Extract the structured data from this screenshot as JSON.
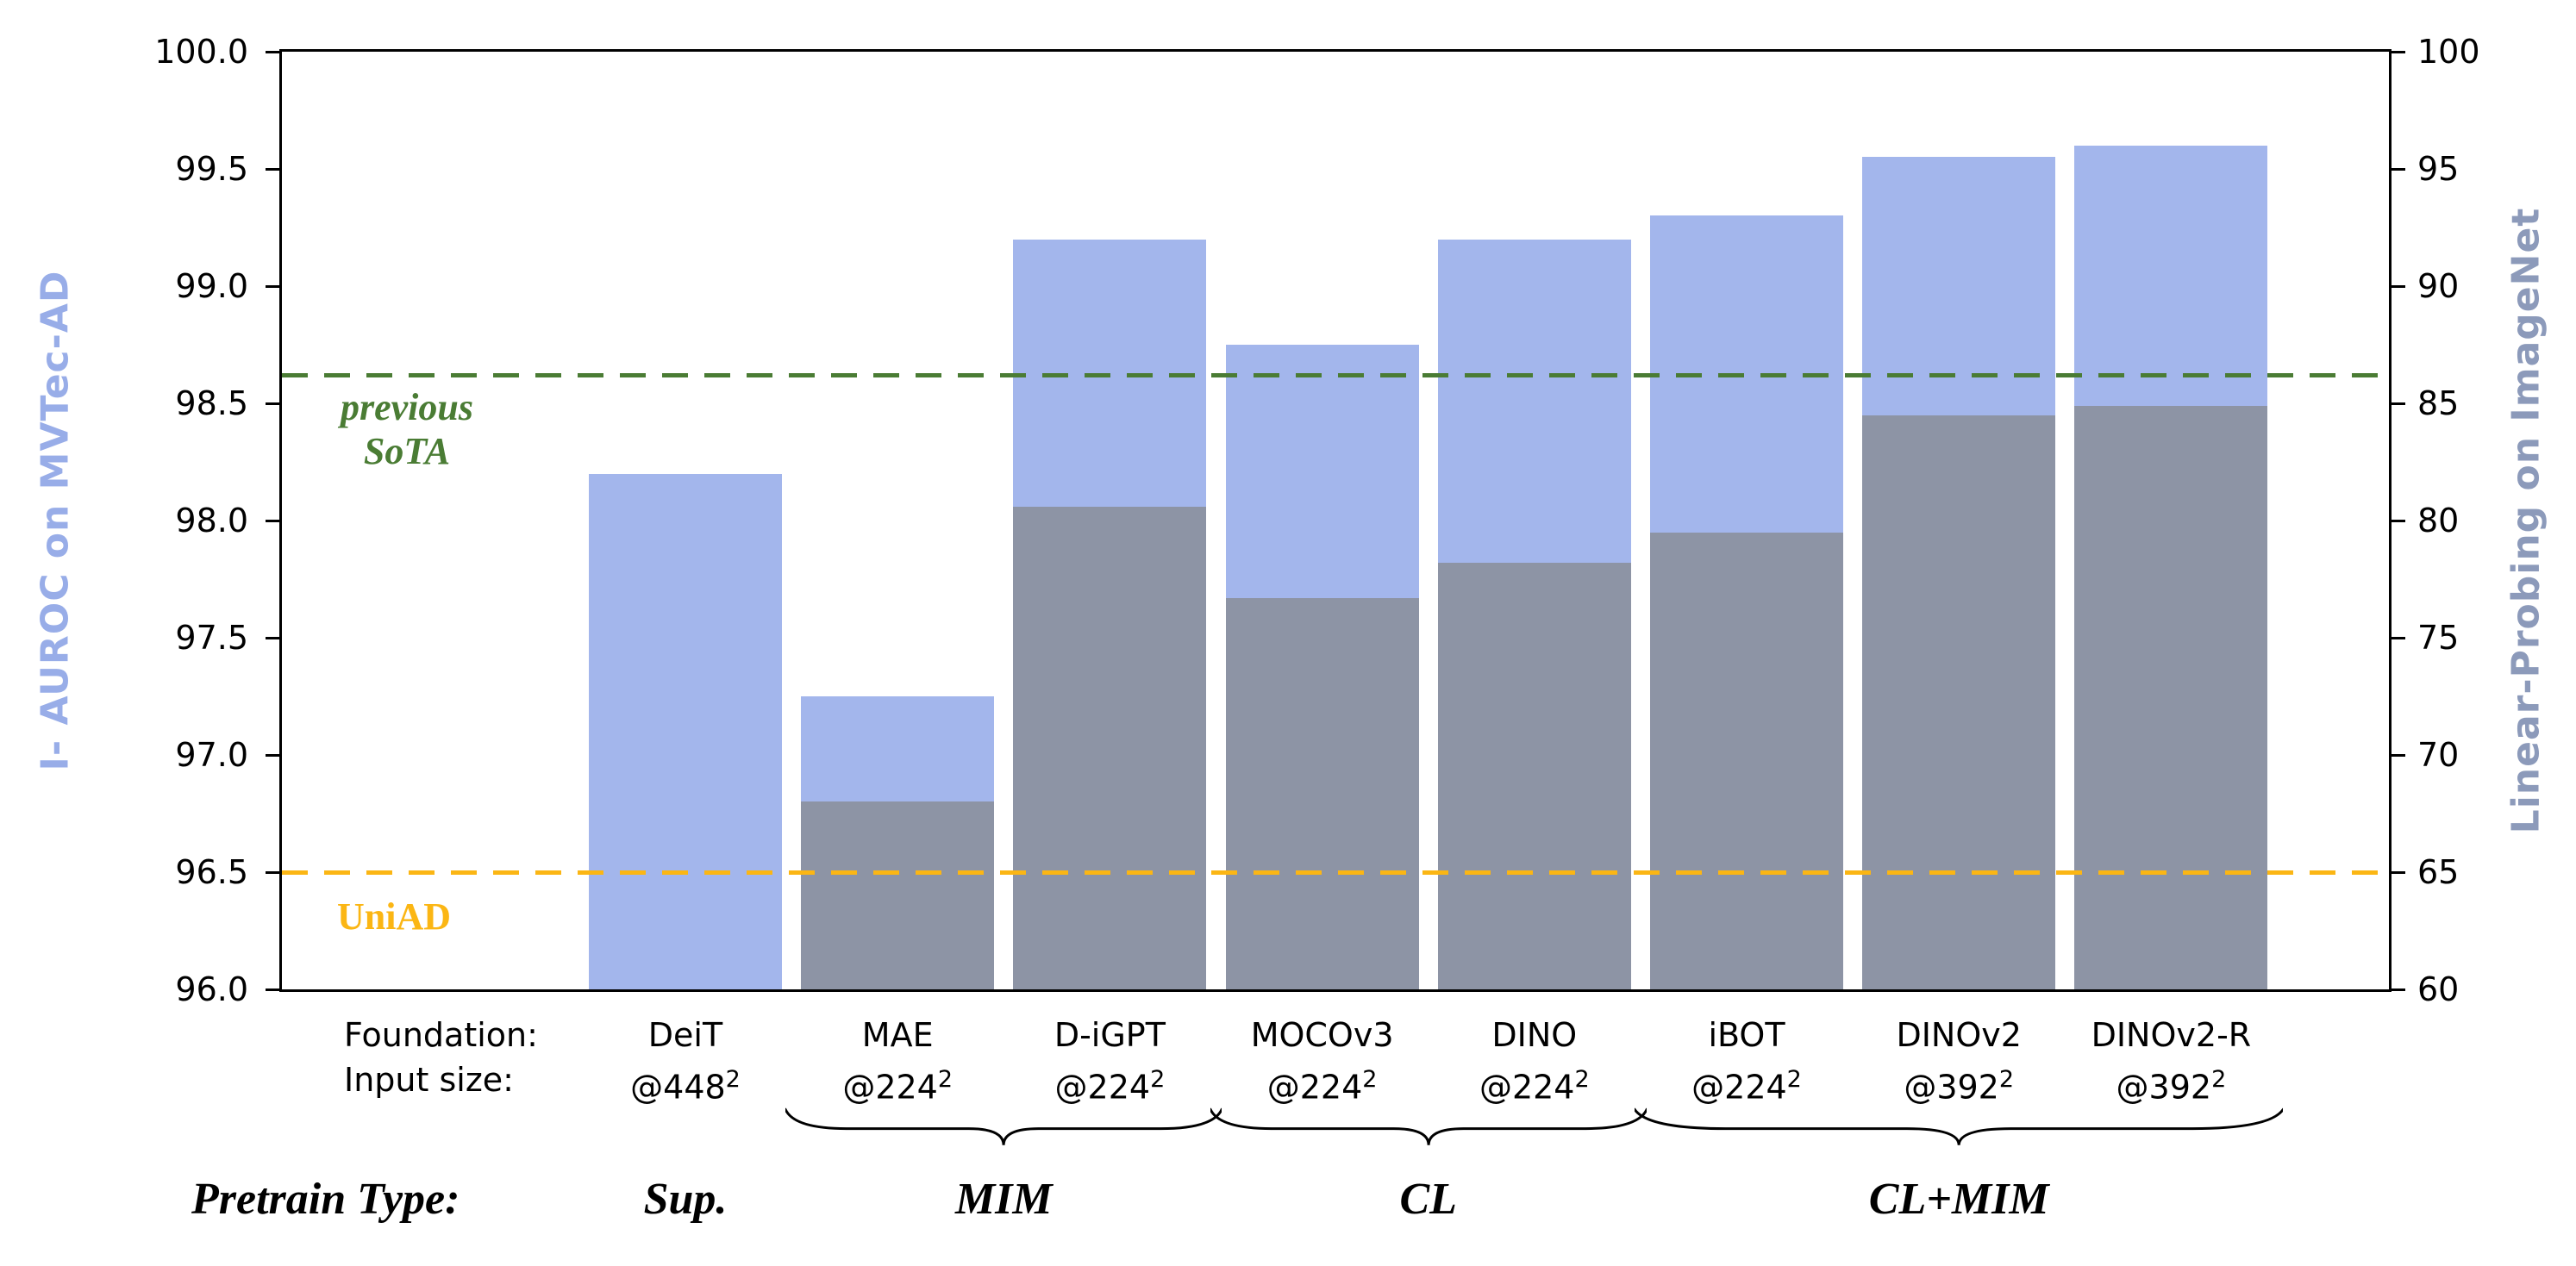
{
  "chart_data": {
    "type": "bar",
    "title": "",
    "categories": [
      "DeiT",
      "MAE",
      "D-iGPT",
      "MOCOv3",
      "DINO",
      "iBOT",
      "DINOv2",
      "DINOv2-R"
    ],
    "input_sizes": [
      {
        "base": "@448",
        "exp": "2"
      },
      {
        "base": "@224",
        "exp": "2"
      },
      {
        "base": "@224",
        "exp": "2"
      },
      {
        "base": "@224",
        "exp": "2"
      },
      {
        "base": "@224",
        "exp": "2"
      },
      {
        "base": "@224",
        "exp": "2"
      },
      {
        "base": "@392",
        "exp": "2"
      },
      {
        "base": "@392",
        "exp": "2"
      }
    ],
    "series": [
      {
        "name": "I-AUROC on MVTec-AD",
        "axis": "left",
        "color": "#a3b6ec",
        "values": [
          98.2,
          97.25,
          99.2,
          98.75,
          99.2,
          99.3,
          99.55,
          99.6
        ]
      },
      {
        "name": "Linear-Probing on ImageNet",
        "axis": "right",
        "color": "#8d94a5",
        "values": [
          null,
          68.0,
          80.6,
          76.7,
          78.2,
          79.5,
          84.5,
          84.9
        ]
      }
    ],
    "left_axis": {
      "label": "I- AUROC on MVTec-AD",
      "min": 96.0,
      "max": 100.0,
      "color": "#98ade8",
      "ticks": [
        "100.0",
        "99.5",
        "99.0",
        "98.5",
        "98.0",
        "97.5",
        "97.0",
        "96.5",
        "96.0"
      ]
    },
    "right_axis": {
      "label": "Linear-Probing on ImageNet",
      "min": 60,
      "max": 100,
      "color": "#8c9aba",
      "ticks": [
        "100",
        "95",
        "90",
        "85",
        "80",
        "75",
        "70",
        "65",
        "60"
      ]
    },
    "reference_lines": [
      {
        "label": "previous SoTA",
        "value": 98.62,
        "color": "#4a7c34"
      },
      {
        "label": "UniAD",
        "value": 96.5,
        "color": "#fbb614"
      }
    ],
    "groups": [
      {
        "label": "Sup.",
        "start": 0,
        "end": 0,
        "brace": false
      },
      {
        "label": "MIM",
        "start": 1,
        "end": 2,
        "brace": true
      },
      {
        "label": "CL",
        "start": 3,
        "end": 4,
        "brace": true
      },
      {
        "label": "CL+MIM",
        "start": 5,
        "end": 7,
        "brace": true
      }
    ],
    "row_labels": {
      "foundation": "Foundation:",
      "input_size": "Input size:",
      "pretrain": "Pretrain Type:"
    },
    "legend_position": "none",
    "grid": false
  }
}
